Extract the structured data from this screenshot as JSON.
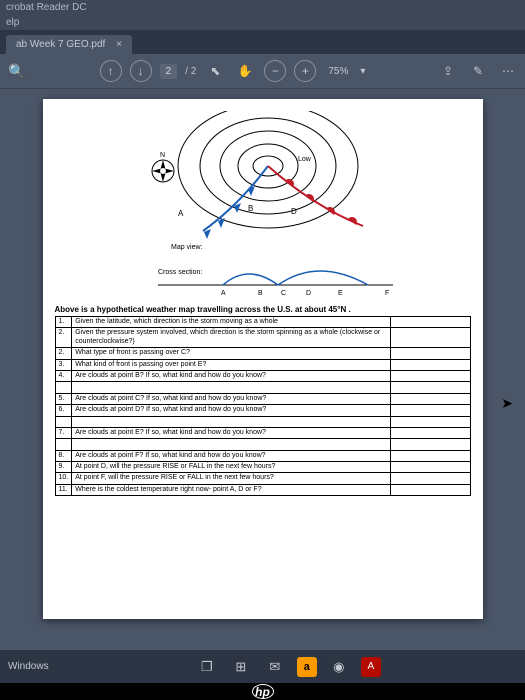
{
  "window": {
    "title": "crobat Reader DC",
    "menu": "elp"
  },
  "tab": {
    "label": "ab Week 7 GEO.pdf",
    "close": "×"
  },
  "toolbar": {
    "page_current": "2",
    "page_total": "/ 2",
    "zoom": "75%",
    "zoom_caret": "▾"
  },
  "document": {
    "diagram": {
      "map_label": "Map view:",
      "cross_label": "Cross section:",
      "compass": "N",
      "low": "Low",
      "points": [
        "A",
        "B",
        "C",
        "D",
        "E",
        "F"
      ],
      "isobar_color": "#000000",
      "cold_front_color": "#1a5fb4",
      "warm_front_color": "#c01c28",
      "cross_front_color": "#1a5fb4"
    },
    "caption": "Above is a hypothetical weather map travelling across the U.S. at about 45°N .",
    "questions": [
      {
        "n": "1.",
        "q": "Given the latitude, which direction is the storm moving as a whole"
      },
      {
        "n": "2.",
        "q": "Given the pressure system involved, which direction is the storm spinning as a whole (clockwise or counterclockwise?)"
      },
      {
        "n": "2.",
        "q": "What type of front is passing over C?"
      },
      {
        "n": "3.",
        "q": "What kind of front is passing over point E?"
      },
      {
        "n": "4.",
        "q": "Are clouds at point B? If so, what kind and how do you know?"
      },
      {
        "n": "5.",
        "q": "Are clouds at point C? If so, what kind and how do you know?"
      },
      {
        "n": "6.",
        "q": "Are clouds at point D? If so, what kind and how do you know?"
      },
      {
        "n": "7.",
        "q": "Are clouds at point E? If so, what kind and how do you know?"
      },
      {
        "n": "8.",
        "q": "Are clouds at point F? If so, what kind and how do you know?"
      },
      {
        "n": "9.",
        "q": "At point D, will the pressure RISE or FALL in the next few hours?"
      },
      {
        "n": "10.",
        "q": "At point F, will the pressure RISE or FALL in the next few hours?"
      },
      {
        "n": "11.",
        "q": "Where is the coldest temperature right now- point A, D or F?"
      }
    ]
  },
  "taskbar": {
    "start": "Windows"
  },
  "hp": "hp"
}
